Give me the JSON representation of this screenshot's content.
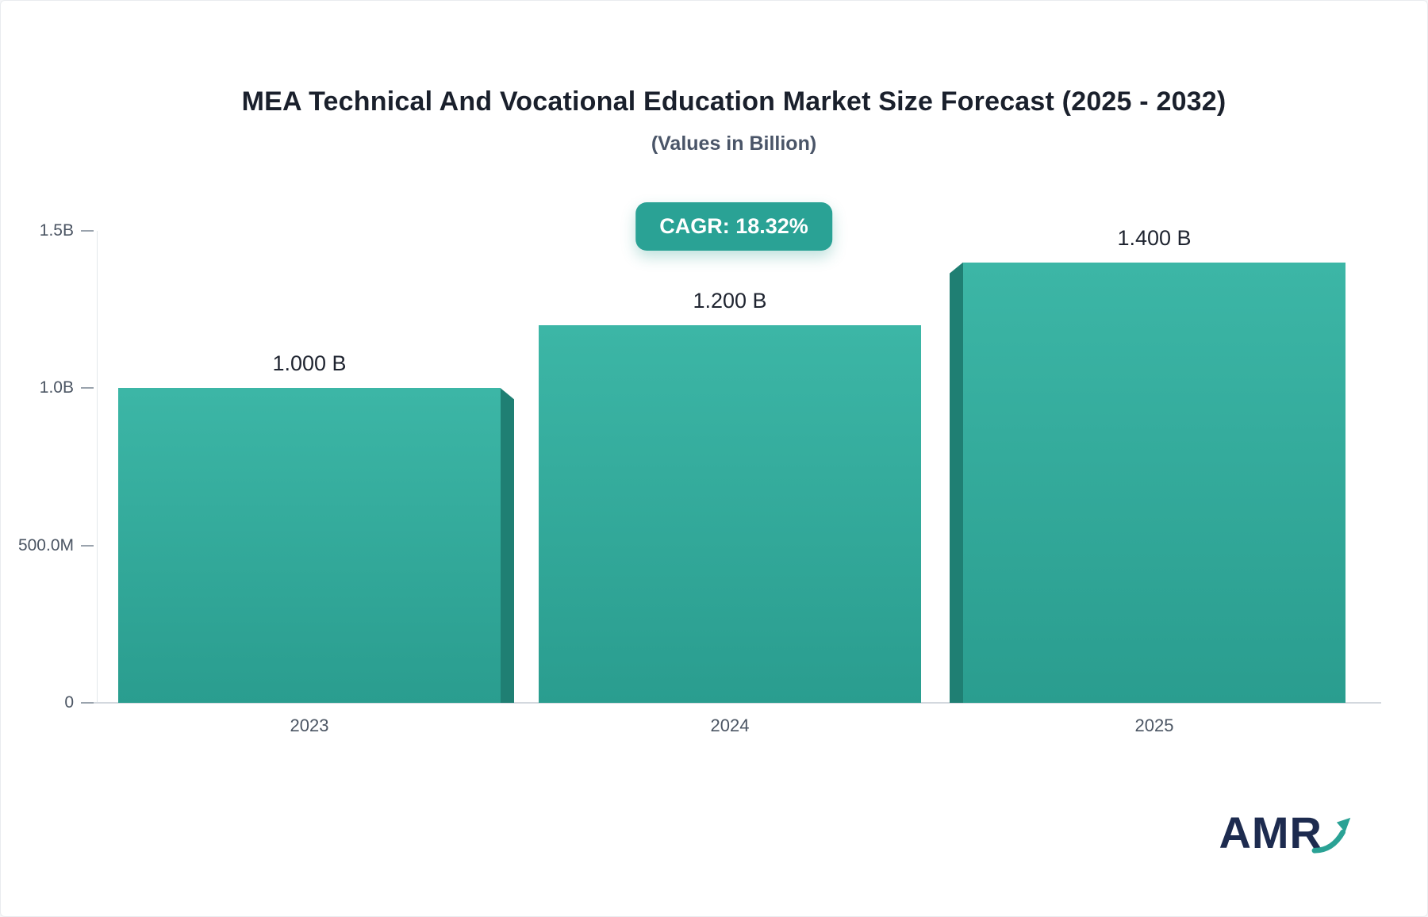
{
  "chart_data": {
    "type": "bar",
    "title": "MEA Technical And Vocational Education Market Size Forecast (2025 - 2032)",
    "subtitle": "(Values in Billion)",
    "cagr_label": "CAGR: 18.32%",
    "categories": [
      "2023",
      "2024",
      "2025"
    ],
    "values": [
      1.0,
      1.2,
      1.4
    ],
    "value_labels": [
      "1.000 B",
      "1.200 B",
      "1.400 B"
    ],
    "ylim": [
      0,
      1.5
    ],
    "y_ticks": [
      "1.5B",
      "1.0B",
      "500.0M",
      "0"
    ],
    "y_tick_values": [
      1.5,
      1.0,
      0.5,
      0
    ],
    "xlabel": "",
    "ylabel": "",
    "legend": "none",
    "grid": "off",
    "colors": {
      "bar_top": "#3cb6a6",
      "bar_bottom": "#2a9d8f",
      "bar_side": "#1f7f73",
      "badge_bg": "#2aa295",
      "title": "#1a202c",
      "subtitle": "#4a5568",
      "axis_text": "#4b5563",
      "value_text": "#1f2430",
      "logo": "#1d2b4f"
    }
  },
  "branding": {
    "logo_text": "AMR"
  }
}
